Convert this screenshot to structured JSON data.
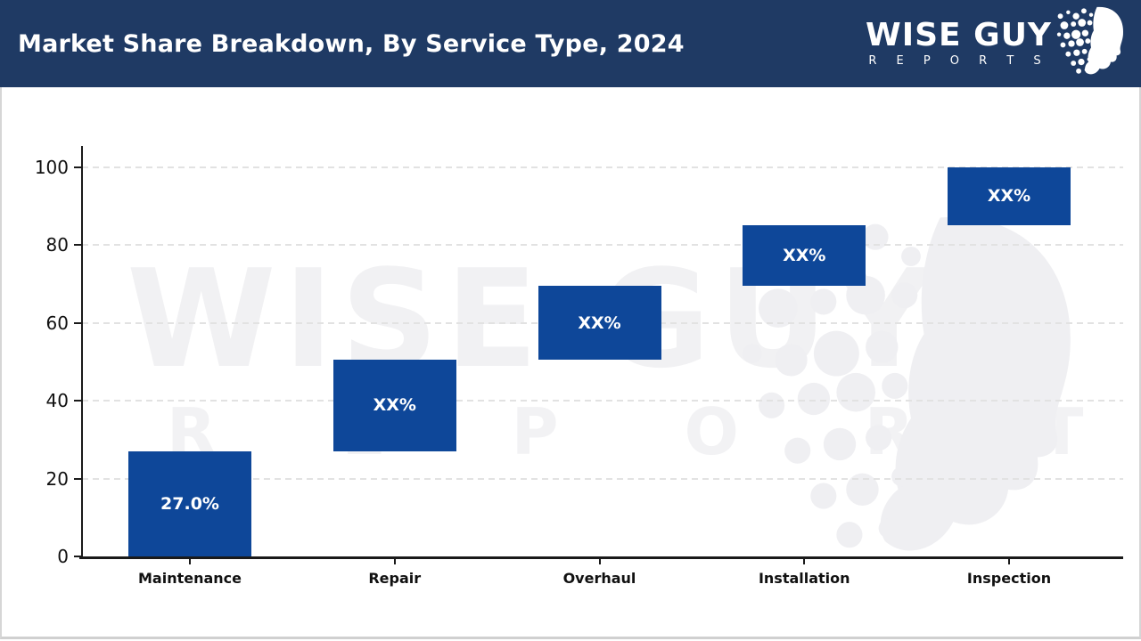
{
  "header": {
    "title": "Market Share Breakdown, By Service Type, 2024",
    "logo": {
      "line1": "WISE GUY",
      "line2": "R E P O R T S"
    },
    "bg_color": "#1F3A64"
  },
  "watermark": {
    "line1": "WISE GUY",
    "line2": "R E P O R T S"
  },
  "chart_data": {
    "type": "bar",
    "subtype": "waterfall",
    "title": "Market Share Breakdown, By Service Type, 2024",
    "categories": [
      "Maintenance",
      "Repair",
      "Overhaul",
      "Installation",
      "Inspection"
    ],
    "segments": [
      {
        "category": "Maintenance",
        "start": 0,
        "end": 27,
        "label": "27.0%"
      },
      {
        "category": "Repair",
        "start": 27,
        "end": 50.5,
        "label": "XX%"
      },
      {
        "category": "Overhaul",
        "start": 50.5,
        "end": 69.5,
        "label": "XX%"
      },
      {
        "category": "Installation",
        "start": 69.5,
        "end": 85,
        "label": "XX%"
      },
      {
        "category": "Inspection",
        "start": 85,
        "end": 100,
        "label": "XX%"
      }
    ],
    "yticks": [
      0,
      20,
      40,
      60,
      80,
      100
    ],
    "grid_ticks": [
      20,
      40,
      60,
      80,
      100
    ],
    "ylim": [
      0,
      105
    ],
    "xlabel": "",
    "ylabel": "",
    "grid": "horizontal-dashed",
    "legend": "none",
    "bar_color": "#0E4799",
    "bar_label_color": "#FFFFFF",
    "axis_color": "#1a1a1a",
    "grid_color": "#e2e2e2"
  }
}
